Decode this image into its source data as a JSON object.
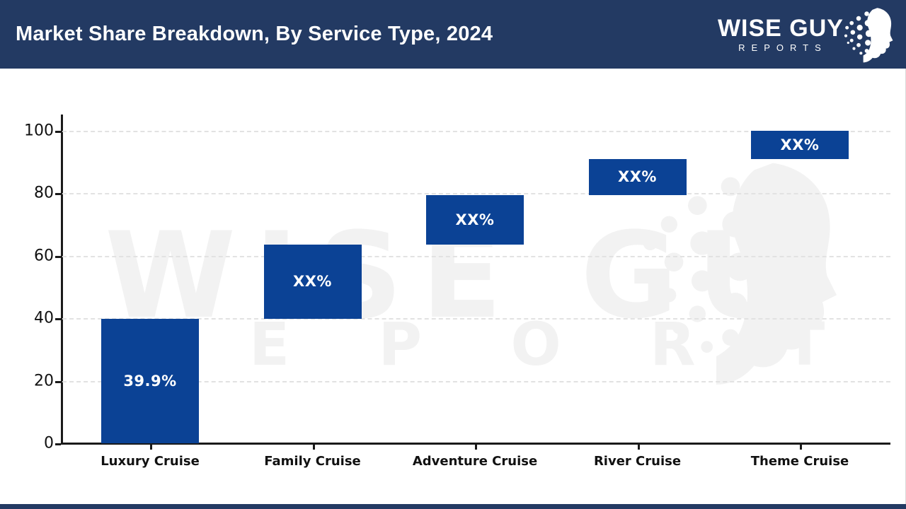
{
  "header": {
    "title": "Market Share Breakdown, By Service Type, 2024",
    "logo": {
      "wordmark": "WISE GUY",
      "sub": "REPORTS"
    }
  },
  "watermark": {
    "wordmark": "WISE GU",
    "sub": "R E P O R T S"
  },
  "chart_data": {
    "type": "bar",
    "subtype": "waterfall",
    "title": "Market Share Breakdown, By Service Type, 2024",
    "categories": [
      "Luxury Cruise",
      "Family Cruise",
      "Adventure Cruise",
      "River Cruise",
      "Theme Cruise"
    ],
    "segments": [
      {
        "category": "Luxury Cruise",
        "start": 0,
        "end": 39.9,
        "label": "39.9%"
      },
      {
        "category": "Family Cruise",
        "start": 39.9,
        "end": 63.5,
        "label": "XX%"
      },
      {
        "category": "Adventure Cruise",
        "start": 63.5,
        "end": 79.5,
        "label": "XX%"
      },
      {
        "category": "River Cruise",
        "start": 79.5,
        "end": 91.0,
        "label": "XX%"
      },
      {
        "category": "Theme Cruise",
        "start": 91.0,
        "end": 100.0,
        "label": "XX%"
      }
    ],
    "xlabel": "",
    "ylabel": "",
    "ylim": [
      0,
      100
    ],
    "yticks": [
      0,
      20,
      40,
      60,
      80,
      100
    ],
    "grid": "horizontal-dashed",
    "legend": "none",
    "bar_color": "#0B4295",
    "value_label_color": "#FFFFFF"
  },
  "colors": {
    "header_bg": "#233A63",
    "footer_bg": "#233A63",
    "bar": "#0B4295",
    "axis": "#1A1A1A",
    "grid": "#E2E2E2",
    "watermark": "#F2F2F2",
    "title_text": "#FFFFFF",
    "page_bg": "#FFFFFF"
  }
}
